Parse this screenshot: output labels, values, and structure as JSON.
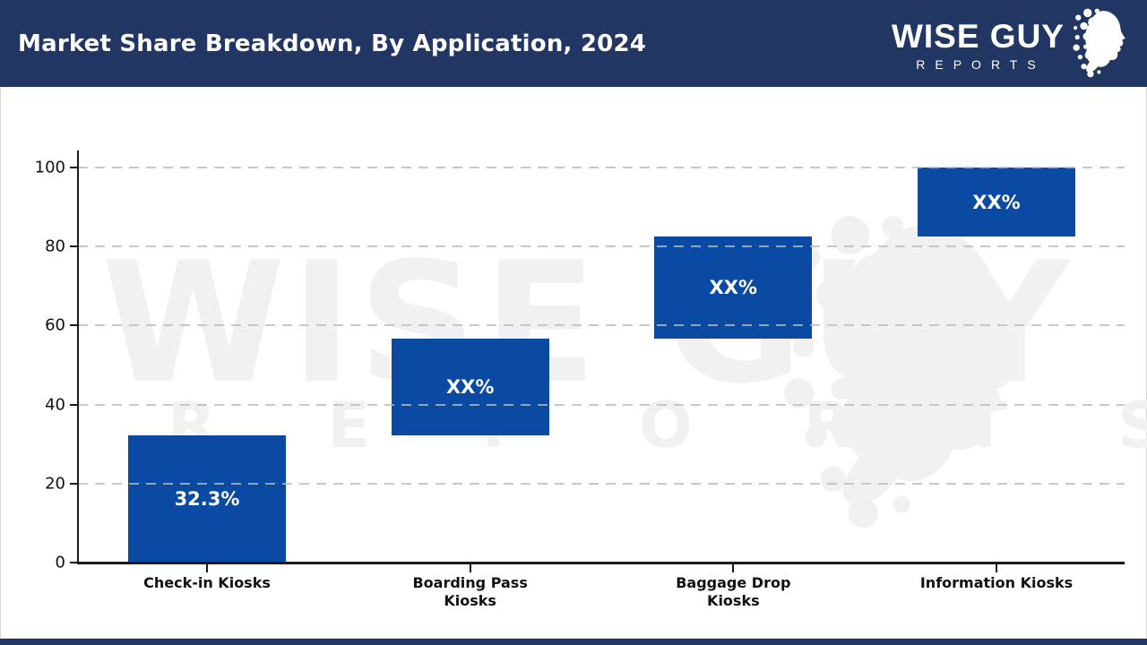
{
  "header": {
    "title": "Market Share Breakdown, By Application, 2024",
    "brand_line1": "WISE GUY",
    "brand_line2": "REPORTS",
    "bg_color": "#213663"
  },
  "watermark": {
    "line1": "WISE GUY",
    "line2": "R E P O R T S"
  },
  "chart_data": {
    "type": "bar",
    "subtype": "floating-waterfall",
    "title": "Market Share Breakdown, By Application, 2024",
    "categories": [
      [
        "Check-in Kiosks"
      ],
      [
        "Boarding Pass",
        "Kiosks"
      ],
      [
        "Baggage Drop",
        "Kiosks"
      ],
      [
        "Information Kiosks"
      ]
    ],
    "segments": [
      {
        "start": 0,
        "end": 32.3,
        "label": "32.3%"
      },
      {
        "start": 32.3,
        "end": 56.6,
        "label": "XX%"
      },
      {
        "start": 56.6,
        "end": 82.5,
        "label": "XX%"
      },
      {
        "start": 82.5,
        "end": 100,
        "label": "XX%"
      }
    ],
    "xlabel": "",
    "ylabel": "",
    "ylim": [
      0,
      100
    ],
    "yticks": [
      0,
      20,
      40,
      60,
      80,
      100
    ],
    "grid": "horizontal-dashed",
    "legend": "none",
    "bar_color": "#0b4aa2",
    "bar_label_color": "#ffffff"
  }
}
